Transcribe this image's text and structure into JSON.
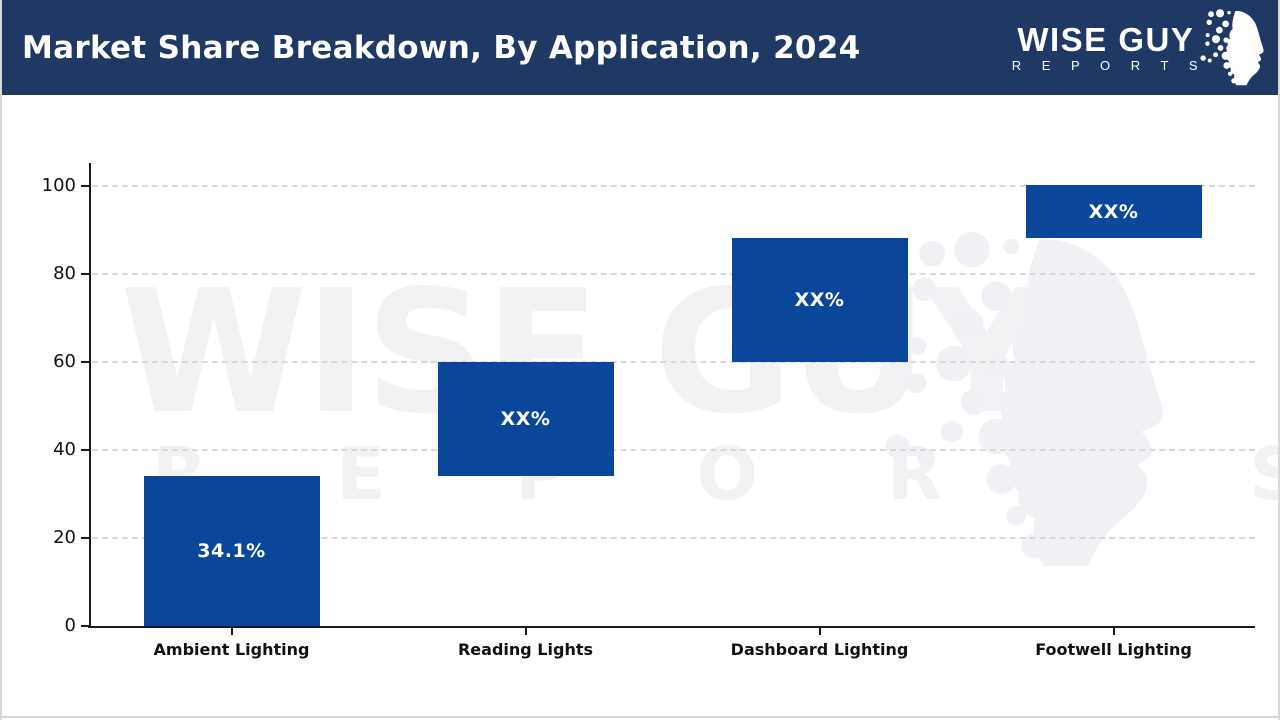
{
  "colors": {
    "header_bg": "#1f3864",
    "bar": "#0a4699",
    "grid": "#d9d9d9",
    "axis": "#1a1a1a",
    "watermark": "#f1f2f4",
    "title_text": "#ffffff"
  },
  "header": {
    "title": "Market Share Breakdown, By Application, 2024",
    "logo": {
      "line1": "WISE GUY",
      "line2": "R E P O R T S"
    }
  },
  "chart_data": {
    "type": "bar",
    "subtype": "waterfall",
    "title": "Market Share Breakdown, By Application, 2024",
    "categories": [
      "Ambient Lighting",
      "Reading Lights",
      "Dashboard Lighting",
      "Footwell Lighting"
    ],
    "bars": [
      {
        "category": "Ambient Lighting",
        "label": "34.1%",
        "start": 0,
        "end": 34.1
      },
      {
        "category": "Reading Lights",
        "label": "XX%",
        "start": 34.1,
        "end": 60
      },
      {
        "category": "Dashboard Lighting",
        "label": "XX%",
        "start": 60,
        "end": 88.2
      },
      {
        "category": "Footwell Lighting",
        "label": "XX%",
        "start": 88.2,
        "end": 100.2
      }
    ],
    "yticks": [
      0,
      20,
      40,
      60,
      80,
      100
    ],
    "ylim": [
      0,
      105
    ],
    "xlabel": "",
    "ylabel": "",
    "grid": "horizontal-dashed",
    "legend": "none",
    "watermark": {
      "line1": "WISE GUY",
      "line2": "R E P O R T S"
    }
  }
}
